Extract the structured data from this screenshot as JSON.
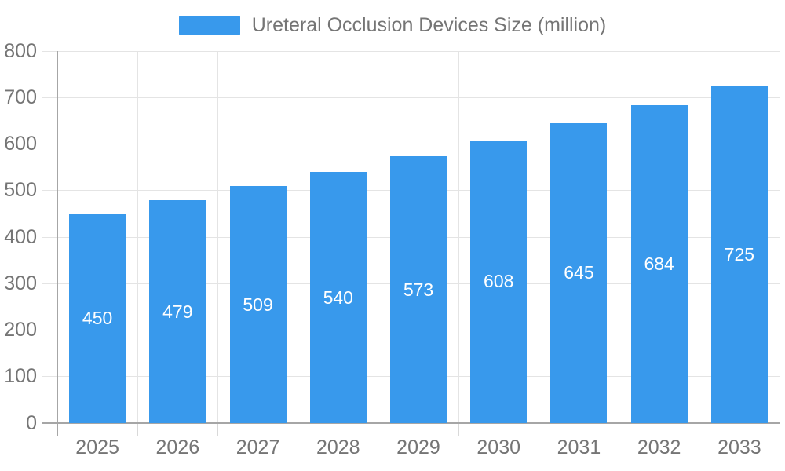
{
  "legend": {
    "label": "Ureteral Occlusion Devices Size (million)"
  },
  "colors": {
    "bar": "#3899EC",
    "axis_line": "#a6a6a6",
    "grid_line": "#e4e4e4",
    "x_tick_line": "#d9d9d9",
    "text": "#757575",
    "value_label": "#ffffff",
    "background": "#ffffff"
  },
  "chart_data": {
    "type": "bar",
    "title": "Ureteral Occlusion Devices Size (million)",
    "categories": [
      "2025",
      "2026",
      "2027",
      "2028",
      "2029",
      "2030",
      "2031",
      "2032",
      "2033"
    ],
    "values": [
      450,
      479,
      509,
      540,
      573,
      608,
      645,
      684,
      725
    ],
    "xlabel": "",
    "ylabel": "",
    "ylim": [
      0,
      800
    ],
    "yticks": [
      0,
      100,
      200,
      300,
      400,
      500,
      600,
      700,
      800
    ],
    "grid": true,
    "legend_position": "top-center",
    "value_label_position": "inside-center"
  }
}
